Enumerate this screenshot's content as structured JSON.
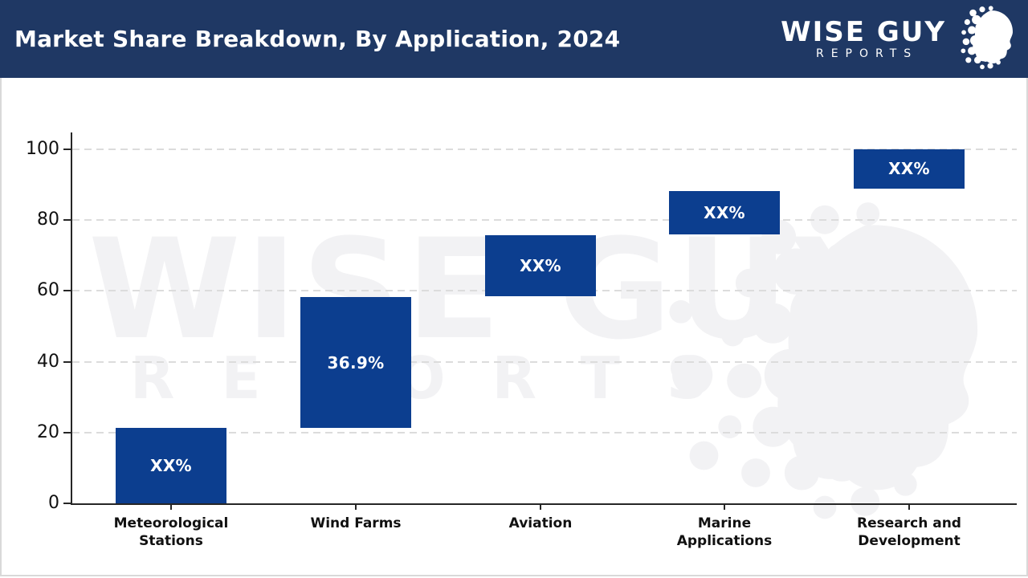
{
  "header": {
    "title": "Market Share Breakdown, By Application, 2024",
    "logo_line1": "WISE GUY",
    "logo_line2": "REPORTS"
  },
  "watermark": {
    "line1": "WISE GUY",
    "line2": "REPORTS"
  },
  "colors": {
    "header_bg": "#1f3864",
    "bar_fill": "#0c3e8f",
    "bar_label_text": "#ffffff",
    "axis": "#262626",
    "gridline": "#dcdcdc",
    "tick_text": "#111111",
    "watermark": "#f2f2f4",
    "card_border": "#d9d9d9",
    "title_text": "#ffffff"
  },
  "chart_data": {
    "type": "bar",
    "subtype": "floating-waterfall",
    "title": "Market Share Breakdown, By Application, 2024",
    "xlabel": "",
    "ylabel": "",
    "ylim": [
      0,
      105
    ],
    "yticks": [
      0,
      20,
      40,
      60,
      80,
      100
    ],
    "grid": "horizontal-dashed",
    "legend": "none",
    "categories": [
      "Meteorological\nStations",
      "Wind Farms",
      "Aviation",
      "Marine\nApplications",
      "Research and\nDevelopment"
    ],
    "bars": [
      {
        "category": "Meteorological Stations",
        "label": "XX%",
        "start": 0,
        "end": 21.3,
        "value_shown": null
      },
      {
        "category": "Wind Farms",
        "label": "36.9%",
        "start": 21.3,
        "end": 58.2,
        "value_shown": 36.9
      },
      {
        "category": "Aviation",
        "label": "XX%",
        "start": 58.5,
        "end": 75.8,
        "value_shown": null
      },
      {
        "category": "Marine Applications",
        "label": "XX%",
        "start": 76.0,
        "end": 88.3,
        "value_shown": null
      },
      {
        "category": "Research and Development",
        "label": "XX%",
        "start": 89.0,
        "end": 100.0,
        "value_shown": null
      }
    ]
  }
}
